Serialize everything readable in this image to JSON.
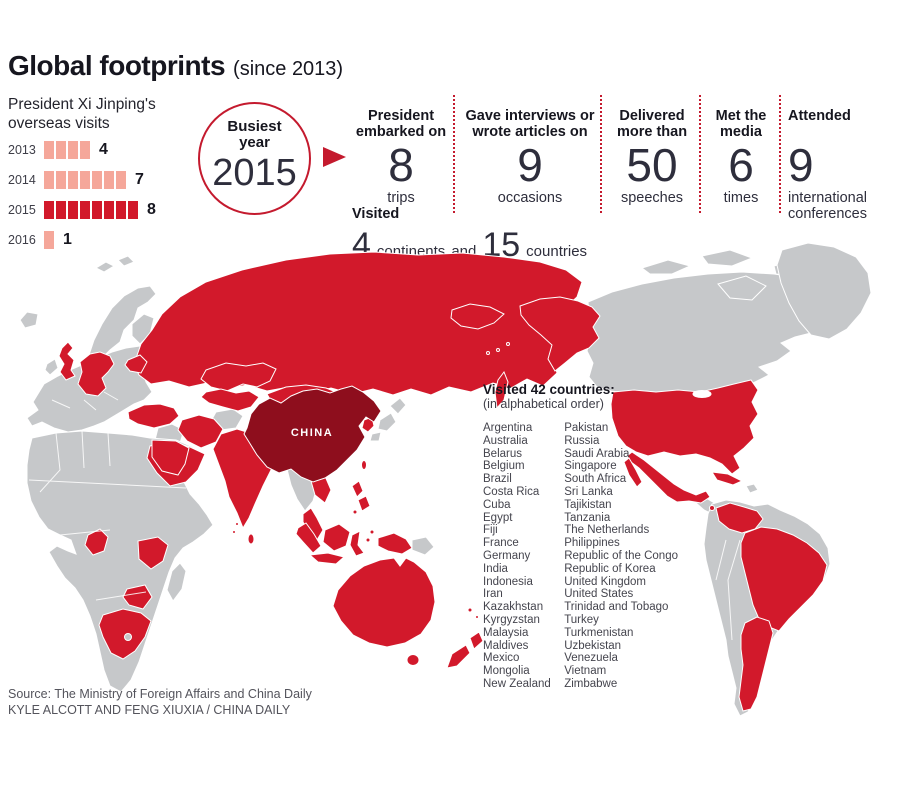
{
  "title": {
    "main": "Global footprints",
    "since": "(since 2013)"
  },
  "intro": {
    "line1": "President Xi Jinping's",
    "line2": "overseas visits"
  },
  "bar_chart": {
    "years": [
      "2013",
      "2014",
      "2015",
      "2016"
    ],
    "values": [
      4,
      7,
      8,
      1
    ],
    "highlight_year": "2015"
  },
  "busiest": {
    "line1": "Busiest",
    "line2": "year",
    "year": "2015"
  },
  "stats": [
    {
      "label": "President embarked on",
      "value": "8",
      "unit": "trips"
    },
    {
      "label": "Gave interviews or wrote articles on",
      "value": "9",
      "unit": "occasions"
    },
    {
      "label": "Delivered more than",
      "value": "50",
      "unit": "speeches"
    },
    {
      "label": "Met the media",
      "value": "6",
      "unit": "times"
    },
    {
      "label": "Attended",
      "value": "9",
      "unit": "international conferences"
    }
  ],
  "visited": {
    "heading": "Visited",
    "continents_value": "4",
    "continents_label": "continents",
    "conjunction": "and",
    "countries_value": "15",
    "countries_label": "countries"
  },
  "map": {
    "china_label": "CHINA"
  },
  "country_list": {
    "heading": "Visited 42 countries:",
    "subheading": "(in alphabetical order)",
    "col1": [
      "Argentina",
      "Australia",
      "Belarus",
      "Belgium",
      "Brazil",
      "Costa Rica",
      "Cuba",
      "Egypt",
      "Fiji",
      "France",
      "Germany",
      "India",
      "Indonesia",
      "Iran",
      "Kazakhstan",
      "Kyrgyzstan",
      "Malaysia",
      "Maldives",
      "Mexico",
      "Mongolia",
      "New Zealand"
    ],
    "col2": [
      "Pakistan",
      "Russia",
      "Saudi Arabia",
      "Singapore",
      "South Africa",
      "Sri Lanka",
      "Tajikistan",
      "Tanzania",
      "The Netherlands",
      "Philippines",
      "Republic of the Congo",
      "Republic of Korea",
      "United Kingdom",
      "United States",
      "Trinidad and Tobago",
      "Turkey",
      "Turkmenistan",
      "Uzbekistan",
      "Venezuela",
      "Vietnam",
      "Zimbabwe"
    ]
  },
  "source": {
    "line1": "Source: The Ministry of Foreign Affairs and China Daily",
    "line2": "KYLE ALCOTT AND FENG XIUXIA / CHINA DAILY"
  },
  "colors": {
    "red": "#d2192b",
    "dark_red": "#8e0e1d",
    "salmon": "#f5a79a",
    "grey": "#c6c8ca",
    "accent": "#c41a2e",
    "ink": "#16161f",
    "number": "#2e2e3c"
  },
  "chart_data": {
    "type": "bar",
    "title": "President Xi Jinping's overseas visits (since 2013)",
    "categories": [
      "2013",
      "2014",
      "2015",
      "2016"
    ],
    "values": [
      4,
      7,
      8,
      1
    ],
    "xlabel": "year",
    "ylabel": "overseas visits",
    "ylim": [
      0,
      8
    ],
    "legend_position": "none",
    "grid": false,
    "annotations": [
      "Busiest year 2015",
      "2015: embarked on 8 trips",
      "gave interviews or wrote articles on 9 occasions",
      "delivered more than 50 speeches",
      "met the media 6 times",
      "attended 9 international conferences",
      "visited 4 continents and 15 countries",
      "map: visited 42 countries since 2013 shown in red, China in dark red"
    ]
  }
}
